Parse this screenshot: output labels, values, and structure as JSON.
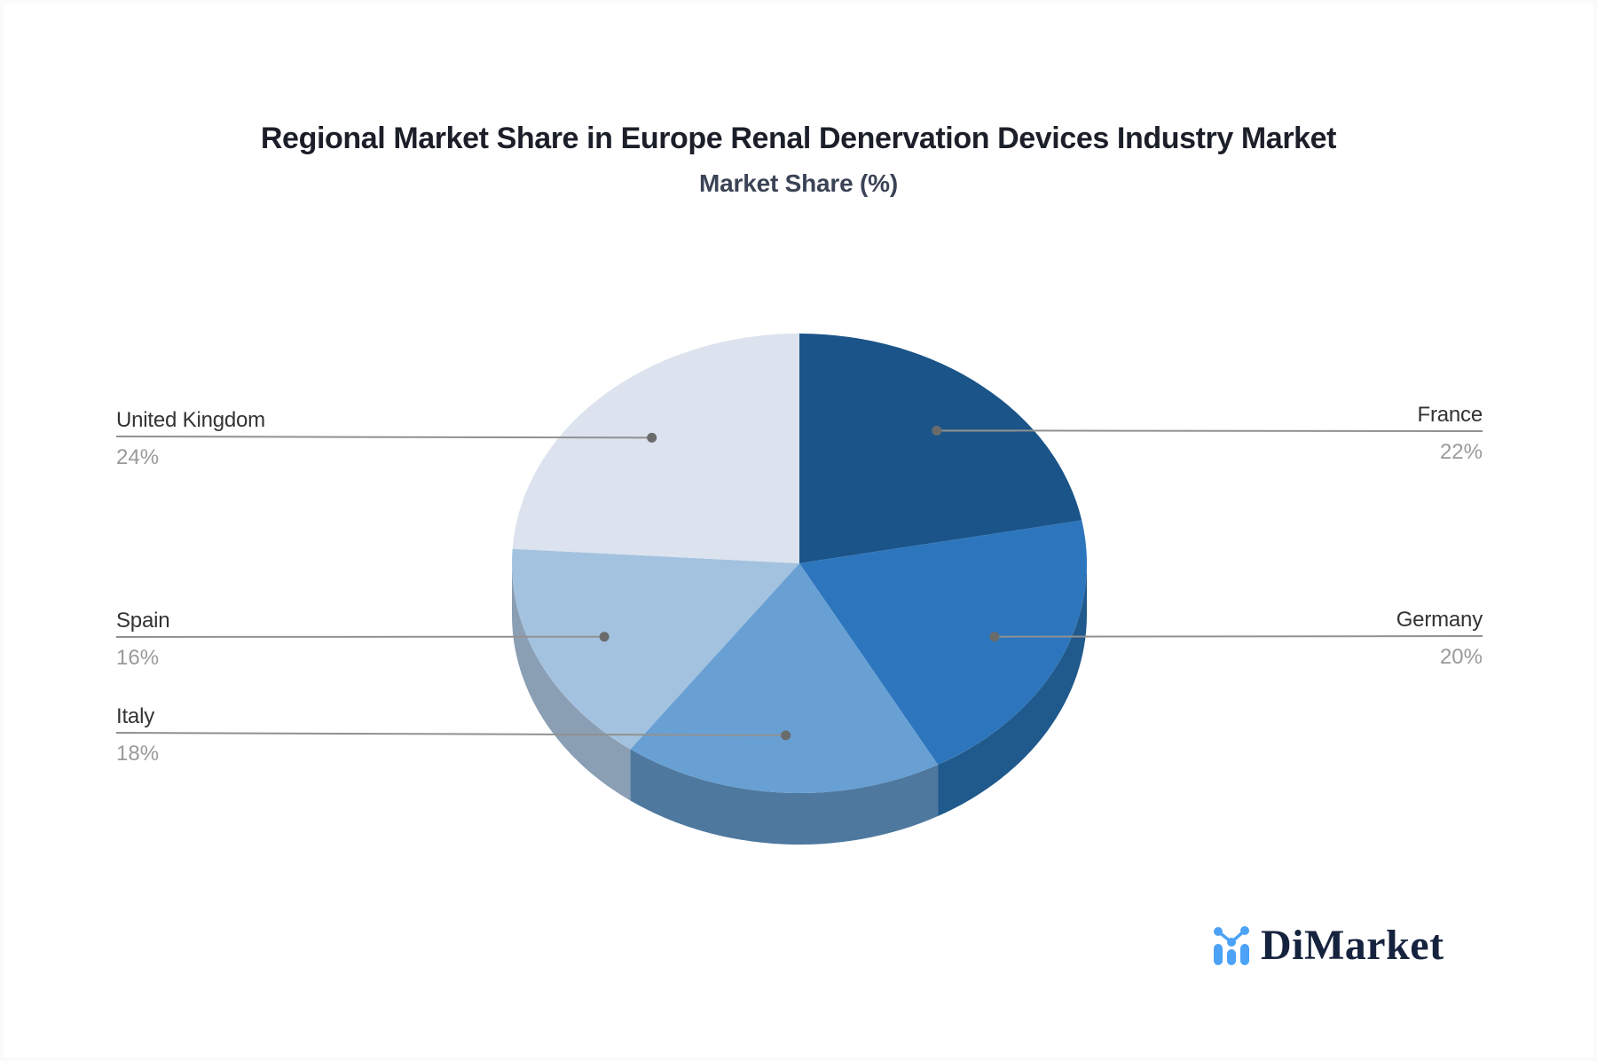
{
  "title": "Regional Market Share in Europe Renal Denervation Devices Industry Market",
  "subtitle": "Market Share (%)",
  "chart_data": {
    "type": "pie",
    "title": "Regional Market Share in Europe Renal Denervation Devices Industry Market",
    "subtitle": "Market Share (%)",
    "unit": "%",
    "style": "3d-pie",
    "start_angle_deg": 0,
    "direction": "clockwise",
    "legend": "none",
    "slices": [
      {
        "label": "France",
        "value": 22,
        "display": "22%",
        "color": "#1a5488",
        "label_side": "right"
      },
      {
        "label": "Germany",
        "value": 20,
        "display": "20%",
        "color": "#2d76bd",
        "rim_color": "#20598c",
        "label_side": "right"
      },
      {
        "label": "Italy",
        "value": 18,
        "display": "18%",
        "color": "#68a0d4",
        "rim_color": "#4e789e",
        "label_side": "left"
      },
      {
        "label": "Spain",
        "value": 16,
        "display": "16%",
        "color": "#a3c2df",
        "rim_color": "#8a9eb4",
        "label_side": "left"
      },
      {
        "label": "United Kingdom",
        "value": 24,
        "display": "24%",
        "color": "#dce3ee",
        "label_side": "left"
      }
    ]
  },
  "leader": {
    "line_color": "#919191",
    "dot_color": "#6b6b6b"
  },
  "logo": {
    "brand": "DiMarket",
    "icon": "bar-line-chart-icon",
    "icon_color": "#4ba2f6",
    "text_color": "#16233e"
  }
}
